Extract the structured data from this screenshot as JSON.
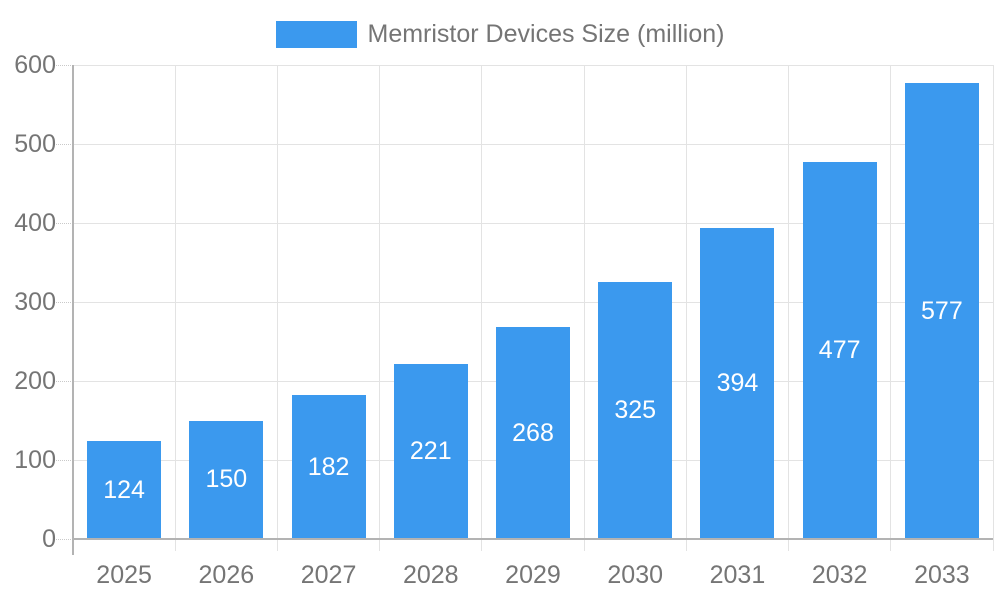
{
  "legend": {
    "label": "Memristor Devices Size (million)"
  },
  "chart_data": {
    "type": "bar",
    "title": "",
    "categories": [
      "2025",
      "2026",
      "2027",
      "2028",
      "2029",
      "2030",
      "2031",
      "2032",
      "2033"
    ],
    "values": [
      124,
      150,
      182,
      221,
      268,
      325,
      394,
      477,
      577
    ],
    "xlabel": "",
    "ylabel": "",
    "ylim": [
      0,
      600
    ],
    "yticks": [
      0,
      100,
      200,
      300,
      400,
      500,
      600
    ],
    "grid": true,
    "legend_position": "top-center",
    "value_label_position": "inside-center",
    "colors": {
      "bar": "#3B99EE",
      "axis_text": "#757575",
      "grid_line": "#E3E3E3",
      "axis_line": "#B3B3B3",
      "tick_line": "#C9C9C9",
      "value_label": "#FFFFFF",
      "background": "#FFFFFF"
    }
  }
}
